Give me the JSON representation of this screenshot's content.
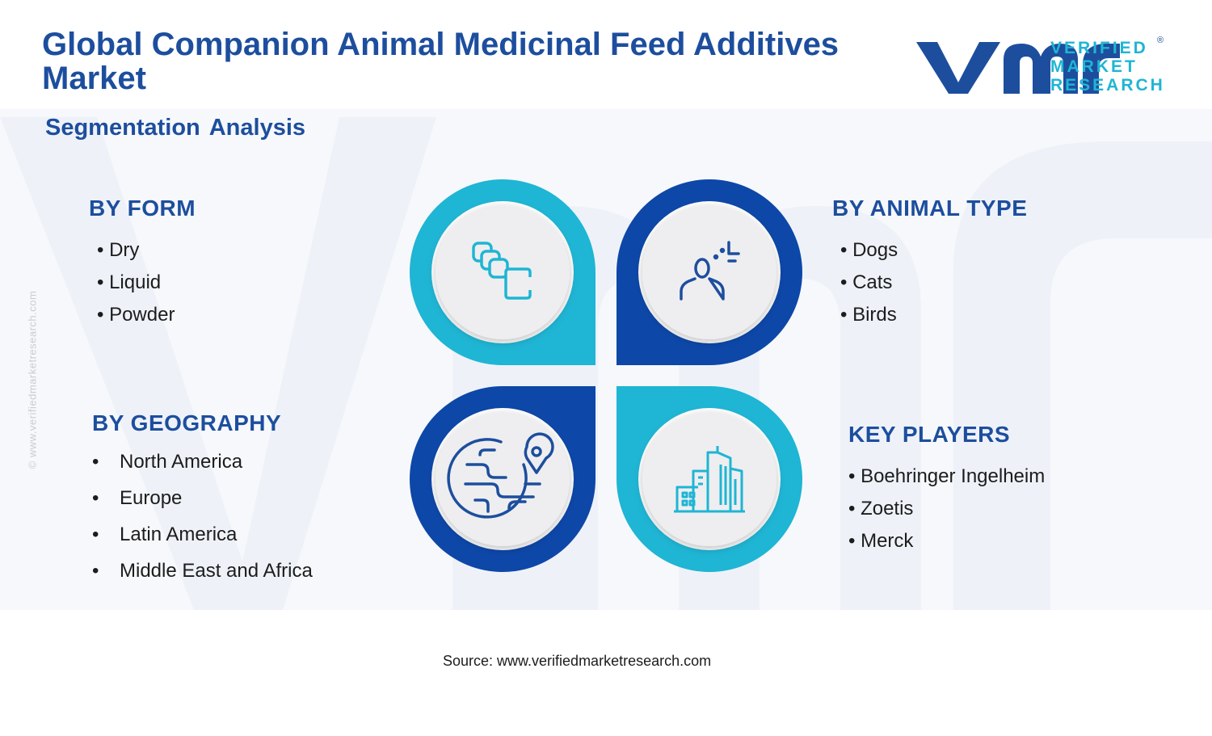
{
  "header": {
    "title": "Global Companion Animal Medicinal Feed Additives Market",
    "subtitle": "Segmentation Analysis"
  },
  "logo": {
    "line1": "VERIFIED",
    "line2": "MARKET",
    "line3": "RESEARCH",
    "registered": "®"
  },
  "watermark_url": "© www.verifiedmarketresearch.com",
  "segments": {
    "form": {
      "title": "BY FORM",
      "items": [
        "Dry",
        "Liquid",
        "Powder"
      ],
      "icon": "layers-icon"
    },
    "animal_type": {
      "title": "BY ANIMAL TYPE",
      "items": [
        "Dogs",
        "Cats",
        "Birds"
      ],
      "icon": "user-icon"
    },
    "geography": {
      "title": "BY GEOGRAPHY",
      "items": [
        "North America",
        "Europe",
        "Latin America",
        "Middle East and Africa"
      ],
      "icon": "globe-pin-icon"
    },
    "key_players": {
      "title": "KEY PLAYERS",
      "items": [
        "Boehringer Ingelheim",
        "Zoetis",
        "Merck"
      ],
      "icon": "buildings-icon"
    }
  },
  "bullet": "•",
  "source": "Source: www.verifiedmarketresearch.com",
  "colors": {
    "navy": "#1d4e9e",
    "deep_blue": "#0d47a8",
    "cyan": "#1fb5d4",
    "inner_circle": "#eeeef0",
    "watermark": "#f0f3f8"
  }
}
